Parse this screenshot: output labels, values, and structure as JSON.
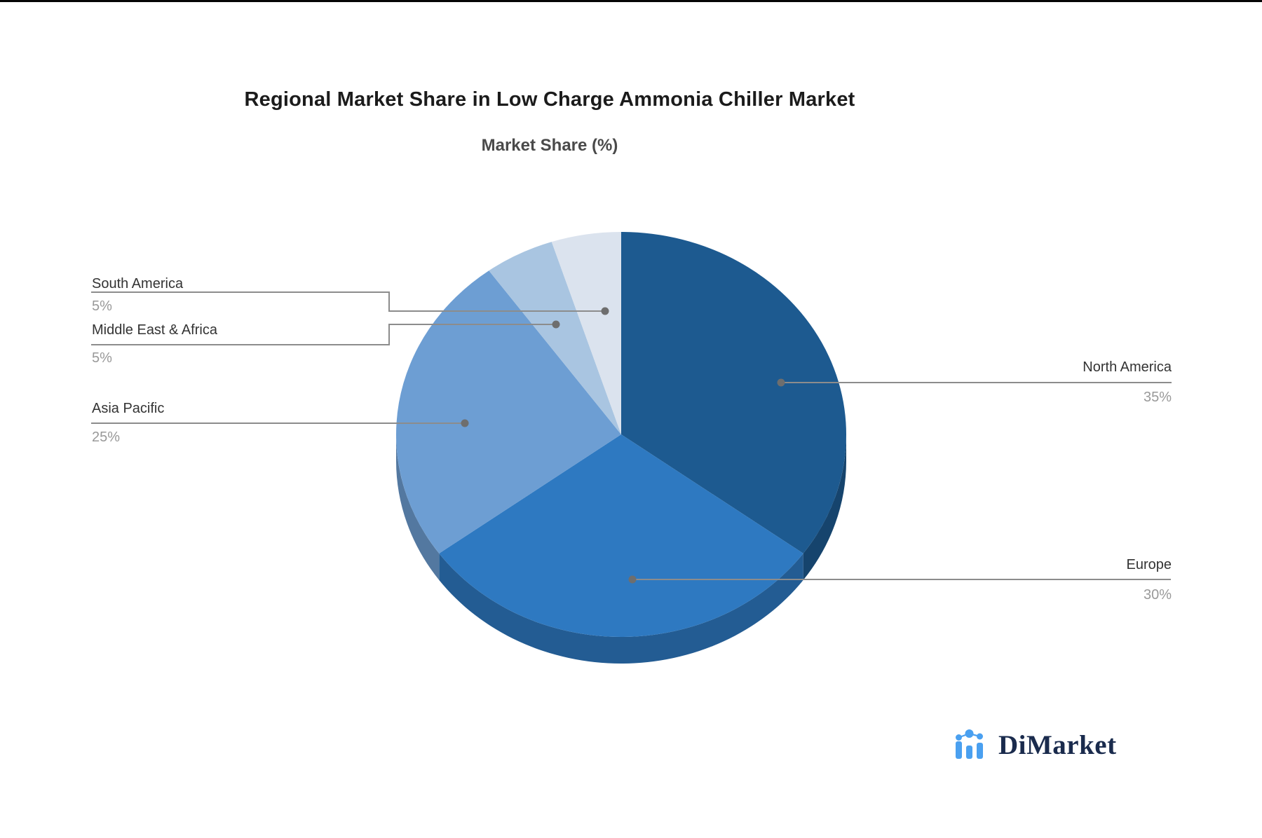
{
  "chart_data": {
    "type": "pie",
    "title": "Regional Market Share in Low Charge Ammonia Chiller Market",
    "subtitle": "Market Share (%)",
    "unit": "%",
    "effect": "3d-depth",
    "start_angle_deg": 0,
    "direction": "clockwise",
    "legend_position": "callout-labels",
    "slices": [
      {
        "label": "North America",
        "value": 35,
        "value_text": "35%",
        "color": "#1d5a90"
      },
      {
        "label": "Europe",
        "value": 30,
        "value_text": "30%",
        "color": "#2e79c1"
      },
      {
        "label": "Asia Pacific",
        "value": 25,
        "value_text": "25%",
        "color": "#6d9ed3"
      },
      {
        "label": "Middle East & Africa",
        "value": 5,
        "value_text": "5%",
        "color": "#a9c5e1"
      },
      {
        "label": "South America",
        "value": 5,
        "value_text": "5%",
        "color": "#dbe3ee"
      }
    ],
    "label_color": "#333333",
    "value_color": "#999999",
    "leader_line_color": "#8c8c8c",
    "leader_dot_color": "#6e6e6e"
  },
  "branding": {
    "logo_text": "DiMarket",
    "logo_text_color": "#1a2b4d",
    "logo_icon_color": "#4aa0f0"
  }
}
